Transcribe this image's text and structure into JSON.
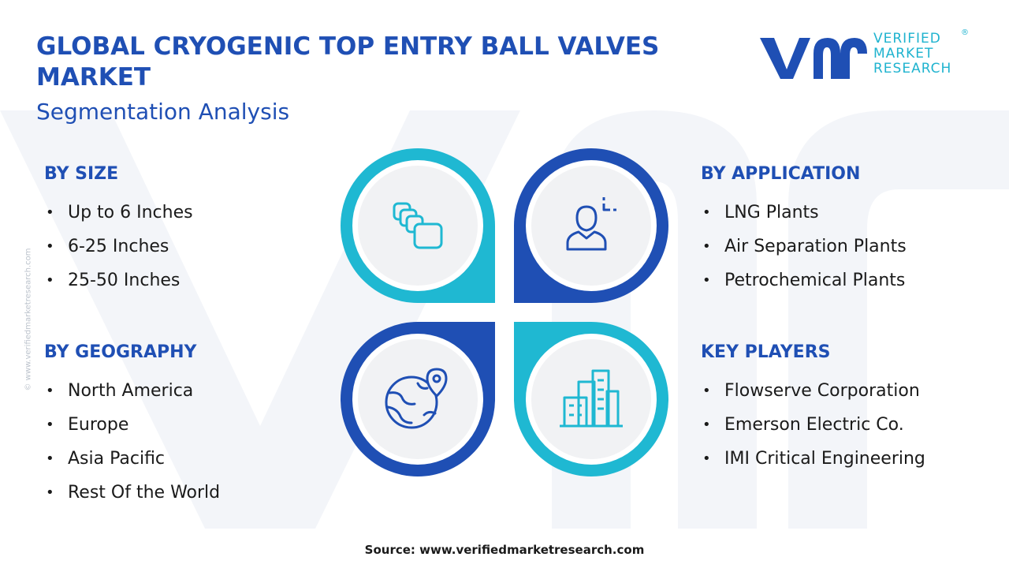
{
  "header": {
    "title": "GLOBAL CRYOGENIC TOP ENTRY BALL VALVES MARKET",
    "subtitle": "Segmentation Analysis"
  },
  "logo": {
    "line1": "VERIFIED",
    "line2": "MARKET",
    "line3": "RESEARCH",
    "registered": "®"
  },
  "side_credit": "© www.verifiedmarketresearch.com",
  "segments": {
    "size": {
      "heading": "BY SIZE",
      "items": [
        "Up to 6 Inches",
        "6-25 Inches",
        "25-50 Inches"
      ]
    },
    "geography": {
      "heading": "BY GEOGRAPHY",
      "items": [
        "North America",
        "Europe",
        "Asia Pacific",
        "Rest Of the World"
      ]
    },
    "application": {
      "heading": "BY APPLICATION",
      "items": [
        "LNG Plants",
        "Air Separation Plants",
        "Petrochemical Plants"
      ]
    },
    "key_players": {
      "heading": "KEY PLAYERS",
      "items": [
        "Flowserve Corporation",
        "Emerson Electric Co.",
        "IMI Critical Engineering"
      ]
    }
  },
  "petals": {
    "top_left": {
      "icon": "stacked-squares-icon",
      "color": "#1fb8d2"
    },
    "top_right": {
      "icon": "person-icon",
      "color": "#1f4fb4"
    },
    "bottom_left": {
      "icon": "globe-pin-icon",
      "color": "#1f4fb4"
    },
    "bottom_right": {
      "icon": "buildings-icon",
      "color": "#1fb8d2"
    }
  },
  "colors": {
    "navy": "#1f4fb4",
    "cyan": "#1fb8d2",
    "circle_fill": "#f1f2f4",
    "watermark": "#f2f4f8"
  },
  "source": "Source: www.verifiedmarketresearch.com"
}
